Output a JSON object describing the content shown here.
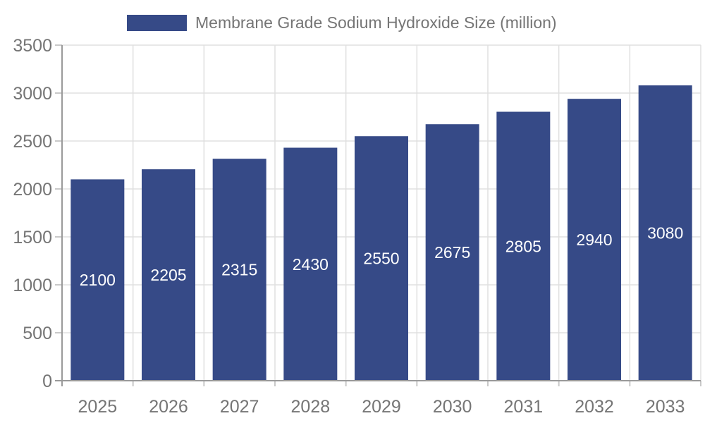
{
  "chart_data": {
    "type": "bar",
    "title": "",
    "legend": "Membrane Grade Sodium Hydroxide Size (million)",
    "legend_position": "top",
    "categories": [
      "2025",
      "2026",
      "2027",
      "2028",
      "2029",
      "2030",
      "2031",
      "2032",
      "2033"
    ],
    "values": [
      2100,
      2205,
      2315,
      2430,
      2550,
      2675,
      2805,
      2940,
      3080
    ],
    "bar_labels": [
      "2100",
      "2205",
      "2315",
      "2430",
      "2550",
      "2675",
      "2805",
      "2940",
      "3080"
    ],
    "xlabel": "",
    "ylabel": "",
    "ylim": [
      0,
      3500
    ],
    "yticks": [
      0,
      500,
      1000,
      1500,
      2000,
      2500,
      3000,
      3500
    ],
    "grid": true,
    "colors": {
      "bar": "#364a87",
      "bar_label": "#ffffff",
      "axis_text": "#757575",
      "legend_text": "#757575",
      "gridline": "#e0e0e0",
      "tick": "#c9c9c9",
      "axis_line": "#9a9a9a",
      "background": "#ffffff"
    }
  }
}
